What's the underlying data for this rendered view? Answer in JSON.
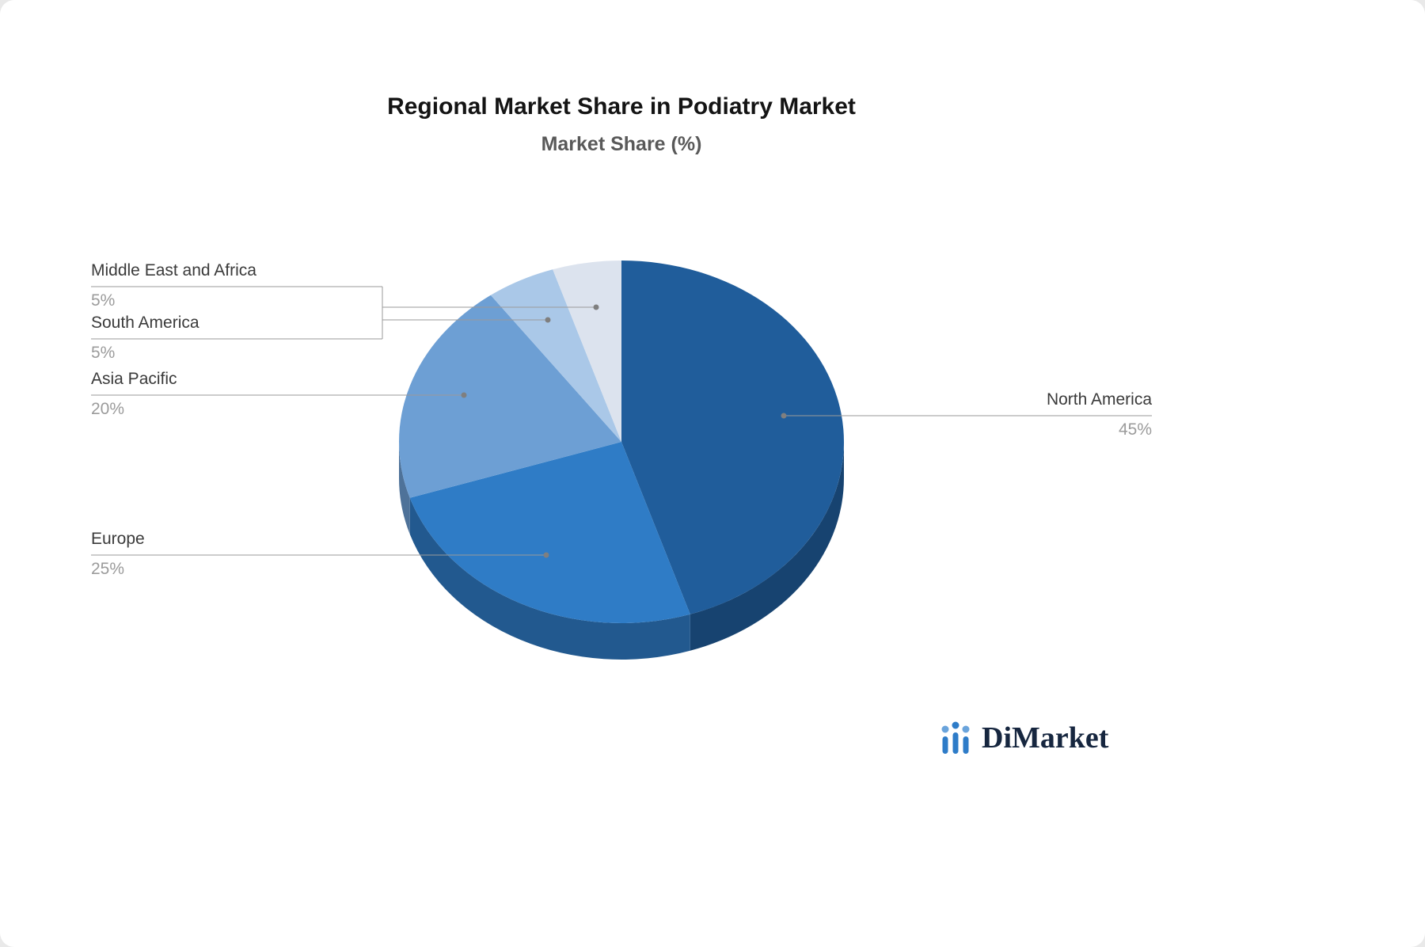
{
  "chart_data": {
    "type": "pie",
    "title": "Regional Market Share in Podiatry Market",
    "subtitle": "Market Share (%)",
    "unit": "%",
    "start_angle_deg": -90,
    "direction": "clockwise",
    "legend_position": "callout-labels",
    "style": "pie-3d",
    "slices": [
      {
        "label": "North America",
        "value": 45,
        "value_label": "45%",
        "color": "#205d9b"
      },
      {
        "label": "Europe",
        "value": 25,
        "value_label": "25%",
        "color": "#2f7cc6"
      },
      {
        "label": "Asia Pacific",
        "value": 20,
        "value_label": "20%",
        "color": "#6d9fd4"
      },
      {
        "label": "South America",
        "value": 5,
        "value_label": "5%",
        "color": "#aac8e8"
      },
      {
        "label": "Middle East and Africa",
        "value": 5,
        "value_label": "5%",
        "color": "#dce3ee"
      }
    ]
  },
  "branding": {
    "logo_text": "DiMarket",
    "logo_icon": "bar-chart-icon",
    "logo_color": "#2e7cc8"
  }
}
